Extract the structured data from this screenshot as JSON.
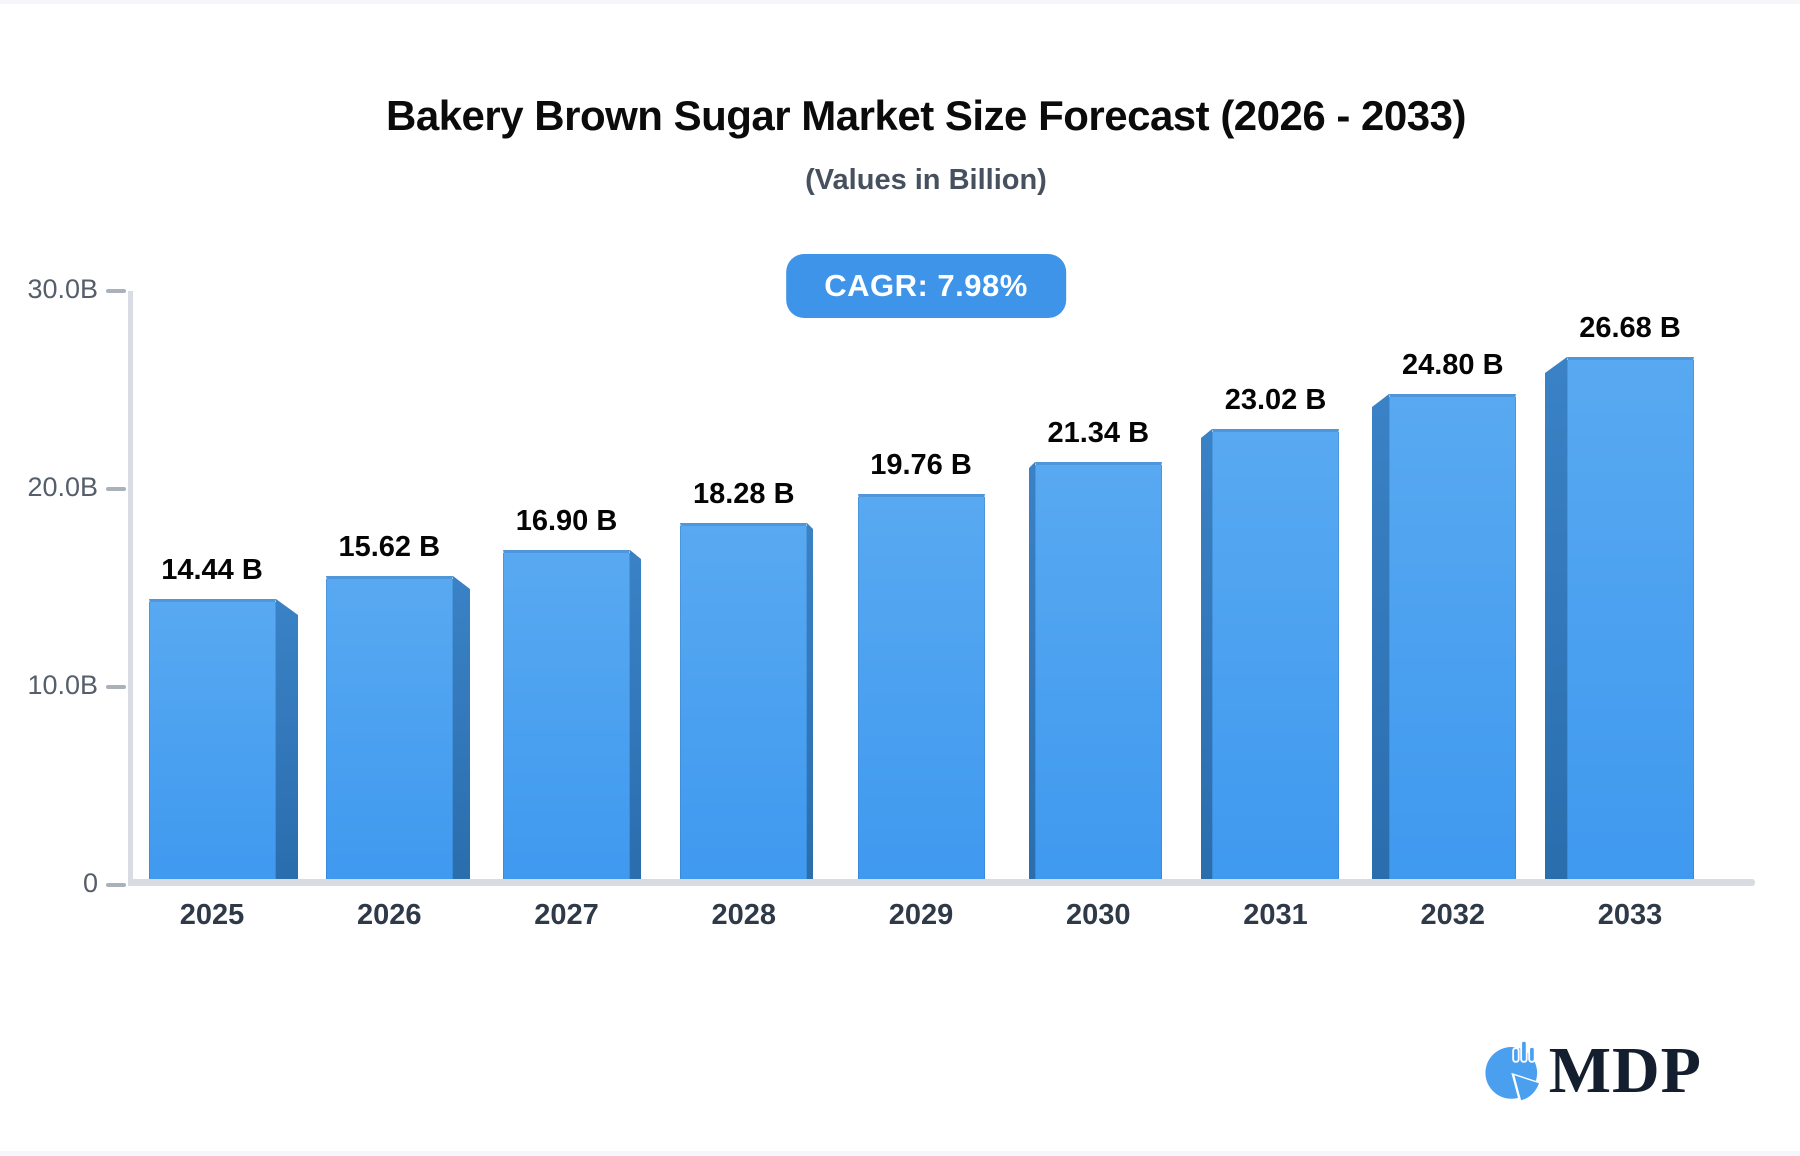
{
  "header": {
    "title": "Bakery Brown Sugar Market Size Forecast (2026 - 2033)",
    "subtitle": "(Values in Billion)",
    "badge_label": "CAGR: 7.98%"
  },
  "chart_data": {
    "type": "bar",
    "title": "Bakery Brown Sugar Market Size Forecast (2026 - 2033)",
    "subtitle": "(Values in Billion)",
    "cagr": "7.98%",
    "categories": [
      "2025",
      "2026",
      "2027",
      "2028",
      "2029",
      "2030",
      "2031",
      "2032",
      "2033"
    ],
    "values": [
      14.44,
      15.62,
      16.9,
      18.28,
      19.76,
      21.34,
      23.02,
      24.8,
      26.68
    ],
    "value_labels": [
      "14.44 B",
      "15.62 B",
      "16.90 B",
      "18.28 B",
      "19.76 B",
      "21.34 B",
      "23.02 B",
      "24.80 B",
      "26.68 B"
    ],
    "xlabel": "",
    "ylabel": "",
    "ylim": [
      0,
      30
    ],
    "yticks": [
      {
        "value": 0,
        "label": "0"
      },
      {
        "value": 10,
        "label": "10.0B"
      },
      {
        "value": 20,
        "label": "20.0B"
      },
      {
        "value": 30,
        "label": "30.0B"
      }
    ],
    "grid": false,
    "legend": false,
    "style": "3d-bars, perspective vanishing point at center bar",
    "colors": {
      "bar_top": "#58a9f1",
      "bar_bottom": "#3f99ef",
      "bar_top_edge": "#4f97da",
      "bar_side_light": "#3a82c6",
      "bar_side_dark": "#2a6dad",
      "axis_line": "#d9dce2",
      "baseline": "#d8dbe0",
      "badge_bg": "#3d94e9",
      "logo_blue": "#4aa0ef",
      "logo_navy": "#131f2e"
    }
  },
  "logo": {
    "text": "MDP",
    "icon": "pie-chart-with-bars-icon"
  }
}
